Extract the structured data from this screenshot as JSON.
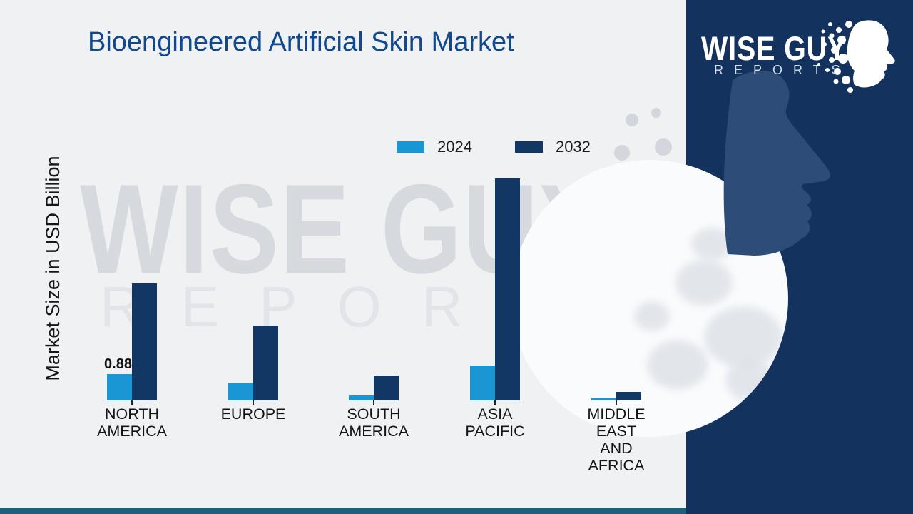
{
  "title": {
    "text": "Bioengineered Artificial Skin Market",
    "color": "#10498f"
  },
  "y_axis_label": "Market Size in USD Billion",
  "legend": {
    "items": [
      {
        "label": "2024",
        "color": "#1b96d4"
      },
      {
        "label": "2032",
        "color": "#123765"
      }
    ]
  },
  "watermark": {
    "line1": "WISE GUY",
    "line2": "REPORTS"
  },
  "brand": {
    "logo_line1": "WISE GUY",
    "logo_line2": "REPORTS",
    "band_color": "#14325e",
    "accent_strip_color": "#1b617f",
    "face_silhouette_color": "#2e4c78"
  },
  "chart_data": {
    "type": "bar",
    "title": "Bioengineered Artificial Skin Market",
    "ylabel": "Market Size in USD Billion",
    "unit": "USD Billion",
    "categories": [
      "NORTH AMERICA",
      "EUROPE",
      "SOUTH AMERICA",
      "ASIA PACIFIC",
      "MIDDLE EAST AND AFRICA"
    ],
    "series": [
      {
        "name": "2024",
        "color": "#1b96d4",
        "values": [
          0.88,
          0.6,
          0.16,
          1.17,
          0.07
        ]
      },
      {
        "name": "2032",
        "color": "#123765",
        "values": [
          3.9,
          2.5,
          0.83,
          7.4,
          0.29
        ]
      }
    ],
    "ylim": [
      0,
      8
    ],
    "grid": false,
    "legend_position": "top",
    "data_labels": [
      {
        "category": "NORTH AMERICA",
        "series": "2024",
        "text": "0.88"
      }
    ]
  }
}
